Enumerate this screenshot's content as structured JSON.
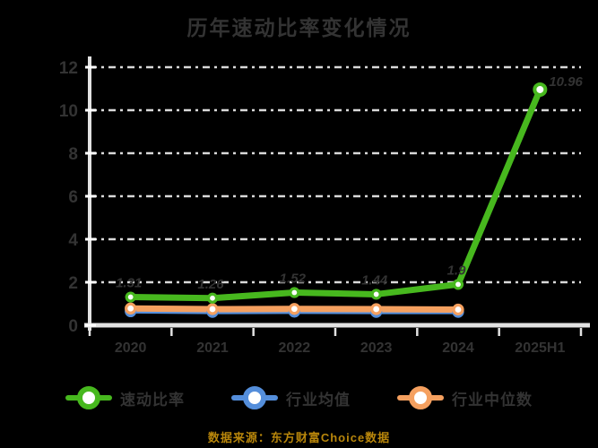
{
  "chart_data": {
    "type": "line",
    "title": "历年速动比率变化情况",
    "categories": [
      "2020",
      "2021",
      "2022",
      "2023",
      "2024",
      "2025H1"
    ],
    "series": [
      {
        "name": "速动比率",
        "color": "#47b81e",
        "values": [
          1.31,
          1.26,
          1.52,
          1.44,
          1.9,
          10.96
        ],
        "labels": [
          "1.31",
          "1.26",
          "1.52",
          "1.44",
          "1.9",
          "10.96"
        ]
      },
      {
        "name": "行业均值",
        "color": "#548edb",
        "values": [
          0.65,
          0.62,
          0.63,
          0.62,
          0.62,
          null
        ],
        "labels": null
      },
      {
        "name": "行业中位数",
        "color": "#f5a05f",
        "values": [
          0.78,
          0.75,
          0.76,
          0.75,
          0.73,
          null
        ],
        "labels": null
      }
    ],
    "xlabel": "",
    "ylabel": "",
    "ylim": [
      0,
      12
    ],
    "yticks": [
      0,
      2,
      4,
      6,
      8,
      10,
      12
    ],
    "grid": "horizontal-dashed",
    "legend_position": "bottom",
    "source_note": "数据来源：东方财富Choice数据",
    "style": {
      "background": "#000000",
      "text_color": "#333333",
      "axis_color": "#e2e2e2",
      "tick_color": "#ffffff",
      "grid_color": "#d9d9d9",
      "source_color": "#b8860b"
    }
  }
}
